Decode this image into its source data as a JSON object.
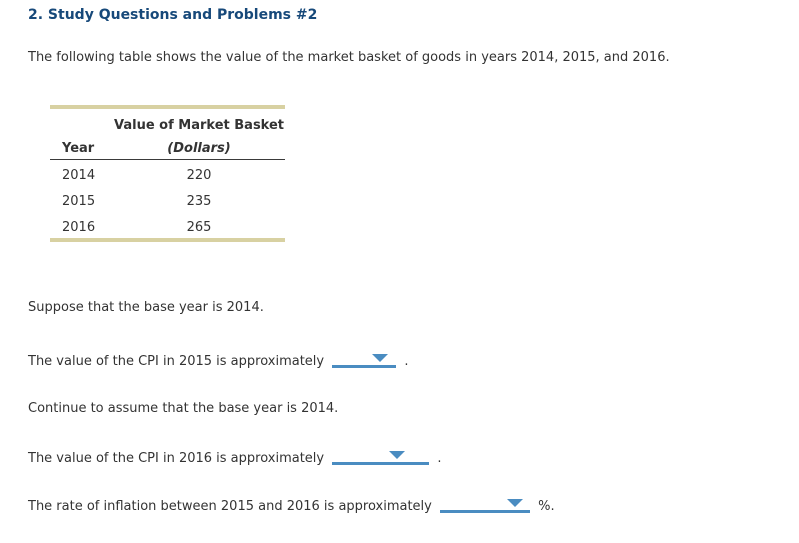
{
  "page": {
    "title": "2. Study Questions and Problems #2",
    "intro": "The following table shows the value of the market basket of goods in years 2014, 2015, and 2016."
  },
  "table": {
    "value_header": "Value of Market Basket",
    "value_subheader": "(Dollars)",
    "year_header": "Year",
    "rows": [
      {
        "year": "2014",
        "value": "220"
      },
      {
        "year": "2015",
        "value": "235"
      },
      {
        "year": "2016",
        "value": "265"
      }
    ]
  },
  "statements": {
    "base_year_note": "Suppose that the base year is 2014.",
    "continue_note": "Continue to assume that the base year is 2014."
  },
  "questions": {
    "q1": {
      "text": "The value of the CPI in 2015 is approximately",
      "dropdown_value": "",
      "suffix": "."
    },
    "q2": {
      "text": "The value of the CPI in 2016 is approximately",
      "dropdown_value": "",
      "suffix": "."
    },
    "q3": {
      "text": "The rate of inflation between 2015 and 2016 is approximately",
      "dropdown_value": "",
      "suffix": "%."
    }
  },
  "icons": {
    "dropdown_arrow": "triangle-down"
  },
  "colors": {
    "title_blue": "#17497a",
    "body_text": "#333333",
    "table_accent_tan": "#d8d1a2",
    "header_rule": "#3a3a3a",
    "dropdown_blue": "#4a8cc1"
  }
}
